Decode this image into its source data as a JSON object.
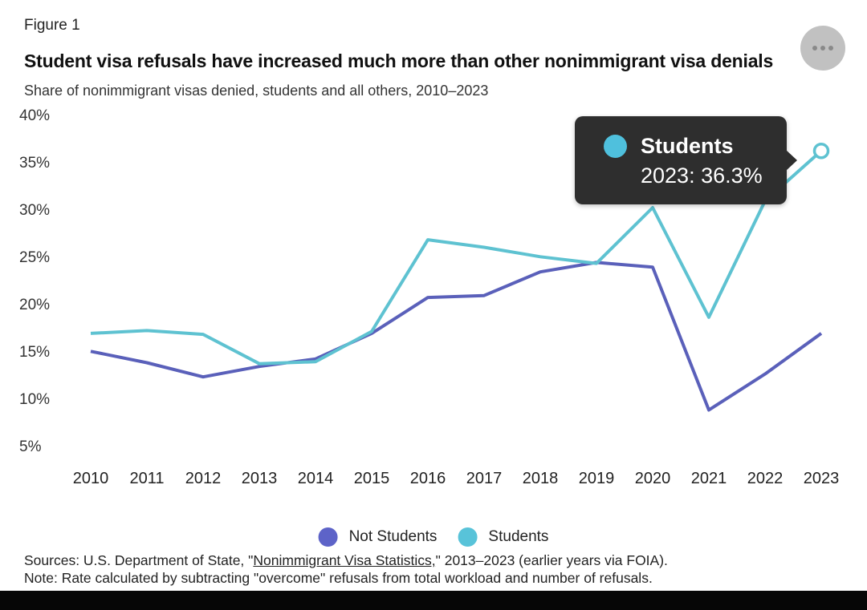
{
  "header": {
    "figure_label": "Figure 1",
    "title": "Student visa refusals have increased much more than other nonimmigrant visa denials",
    "subtitle": "Share of nonimmigrant visas denied, students and all others, 2010–2023",
    "menu_icon": "ellipsis-icon"
  },
  "chart_data": {
    "type": "line",
    "x": [
      2010,
      2011,
      2012,
      2013,
      2014,
      2015,
      2016,
      2017,
      2018,
      2019,
      2020,
      2021,
      2022,
      2023
    ],
    "series": [
      {
        "name": "Not Students",
        "color": "#5a60ba",
        "values": [
          15.1,
          13.9,
          12.4,
          13.5,
          14.3,
          17.0,
          20.8,
          21.0,
          23.5,
          24.5,
          24.0,
          8.9,
          12.7,
          17.0
        ]
      },
      {
        "name": "Students",
        "color": "#5ec2d1",
        "values": [
          17.0,
          17.3,
          16.9,
          13.8,
          14.0,
          17.2,
          26.9,
          26.1,
          25.1,
          24.4,
          30.3,
          18.7,
          31.0,
          36.3
        ],
        "end_marker": "open-circle"
      }
    ],
    "yticks": [
      40,
      35,
      30,
      25,
      20,
      15,
      10,
      5
    ],
    "ytick_suffix": "%",
    "ylim": [
      5,
      40
    ],
    "grid": false,
    "legend_position": "bottom-center",
    "highlighted_point": {
      "series": "Students",
      "x": 2023,
      "value": 36.3
    }
  },
  "tooltip": {
    "series": "Students",
    "value_line": "2023: 36.3%",
    "dot_color": "#4fc0dd",
    "background": "#2e2e2e"
  },
  "legend": {
    "items": [
      {
        "label": "Not Students",
        "color": "#5d63c8"
      },
      {
        "label": "Students",
        "color": "#58c3d9"
      }
    ]
  },
  "footer": {
    "sources_prefix": "Sources: U.S. Department of State, \"",
    "sources_link": "Nonimmigrant Visa Statistics,",
    "sources_suffix": "\" 2013–2023 (earlier years via FOIA).",
    "note": "Note: Rate calculated by subtracting \"overcome\" refusals from total workload and number of refusals."
  }
}
